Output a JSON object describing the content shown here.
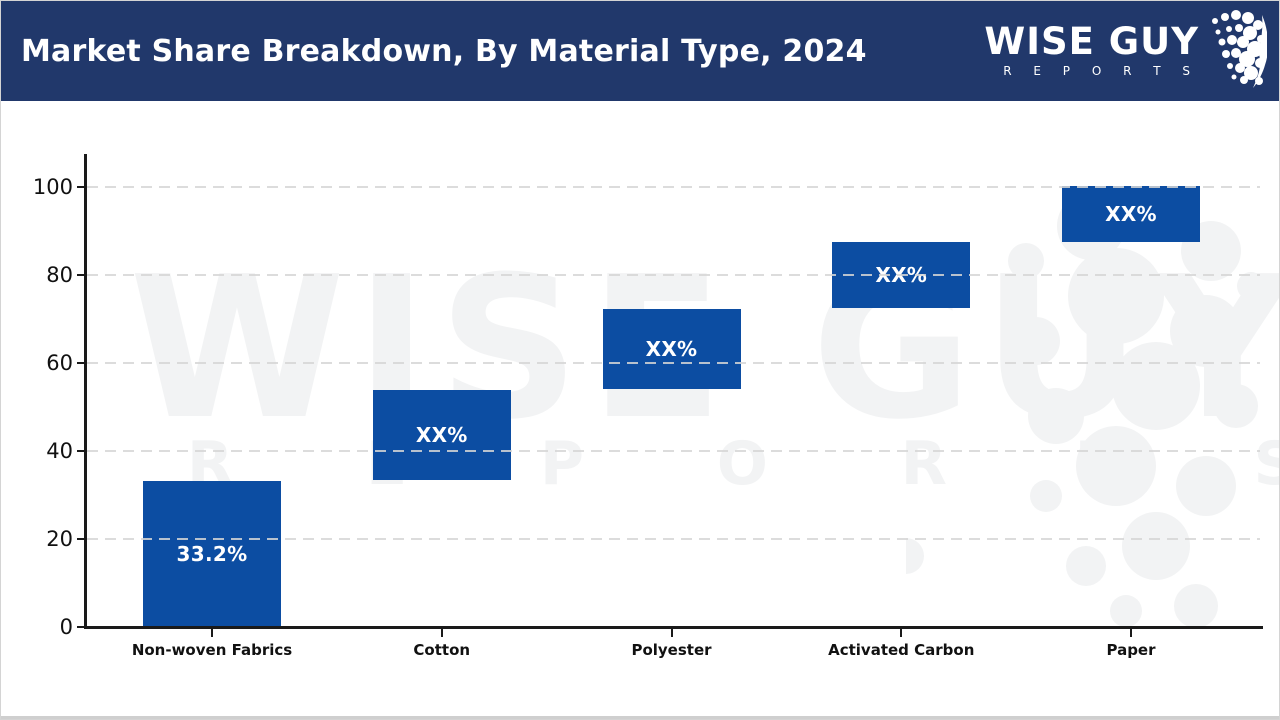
{
  "header": {
    "title": "Market Share Breakdown, By Material Type, 2024",
    "bg_color": "#21386B",
    "logo": {
      "line1": "WISE GUY",
      "line2": "R E P O R T S"
    }
  },
  "watermark": {
    "line1": "WISE GUY",
    "line2": "R E P O R T S"
  },
  "chart_data": {
    "type": "bar",
    "subtype": "waterfall",
    "title": "Market Share Breakdown, By Material Type, 2024",
    "categories": [
      "Non-woven Fabrics",
      "Cotton",
      "Polyester",
      "Activated Carbon",
      "Paper"
    ],
    "segments": [
      {
        "category": "Non-woven Fabrics",
        "base": 0,
        "top": 33.2,
        "label": "33.2%"
      },
      {
        "category": "Cotton",
        "base": 33.3,
        "top": 53.9,
        "label": "XX%"
      },
      {
        "category": "Polyester",
        "base": 54.0,
        "top": 72.3,
        "label": "XX%"
      },
      {
        "category": "Activated Carbon",
        "base": 72.4,
        "top": 87.5,
        "label": "XX%"
      },
      {
        "category": "Paper",
        "base": 87.6,
        "top": 100.2,
        "label": "XX%"
      }
    ],
    "yticks": [
      0,
      20,
      40,
      60,
      80,
      100
    ],
    "ylim": [
      0,
      107
    ],
    "xlabel": "",
    "ylabel": "",
    "grid": "horizontal-dashed-over-bars",
    "bar_color": "#0C4DA2",
    "bar_label_color": "#FFFFFF",
    "axis_color": "#1A1A1A",
    "gridline_color": "#D6D6D6"
  }
}
